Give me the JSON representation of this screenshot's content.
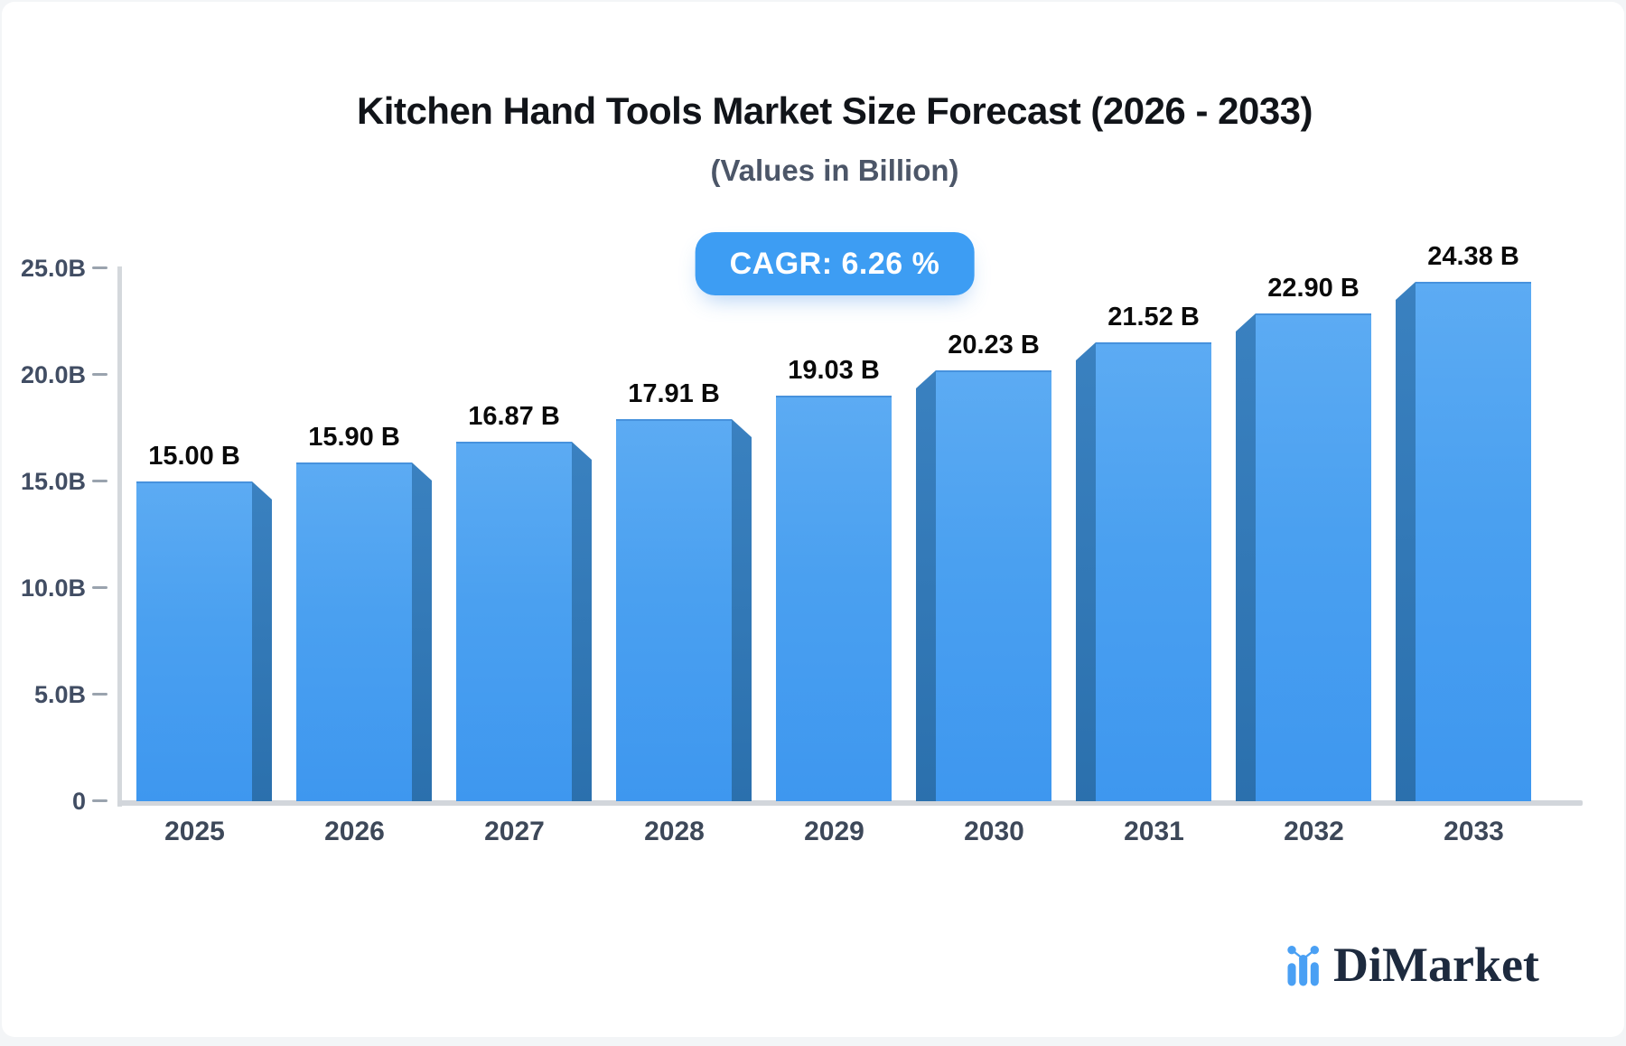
{
  "chart_data": {
    "type": "bar",
    "title": "Kitchen Hand Tools Market Size Forecast (2026 - 2033)",
    "subtitle": "(Values in Billion)",
    "cagr_label": "CAGR: 6.26 %",
    "categories": [
      "2025",
      "2026",
      "2027",
      "2028",
      "2029",
      "2030",
      "2031",
      "2032",
      "2033"
    ],
    "values": [
      15.0,
      15.9,
      16.87,
      17.91,
      19.03,
      20.23,
      21.52,
      22.9,
      24.38
    ],
    "value_labels": [
      "15.00 B",
      "15.90 B",
      "16.87 B",
      "17.91 B",
      "19.03 B",
      "20.23 B",
      "21.52 B",
      "22.90 B",
      "24.38 B"
    ],
    "xlabel": "",
    "ylabel": "",
    "ylim": [
      0,
      25
    ],
    "y_tick_values": [
      0,
      5,
      10,
      15,
      20,
      25
    ],
    "y_tick_labels": [
      "0",
      "5.0B",
      "10.0B",
      "15.0B",
      "20.0B",
      "25.0B"
    ],
    "grid": false,
    "legend": false,
    "colors": {
      "bar_top": "#5cabf3",
      "bar_bottom": "#3e97ef",
      "bar_side": "#2e76b2",
      "badge_bg": "#3d9df3",
      "axis": "#d4d8dc",
      "tick_label": "#414d63",
      "value_label": "#0a0a0a",
      "logo_blue": "#4aa0f4",
      "logo_navy": "#1d2a3e"
    }
  },
  "logo": {
    "text": "DiMarket",
    "icon": "mini-bar-chart-icon"
  }
}
